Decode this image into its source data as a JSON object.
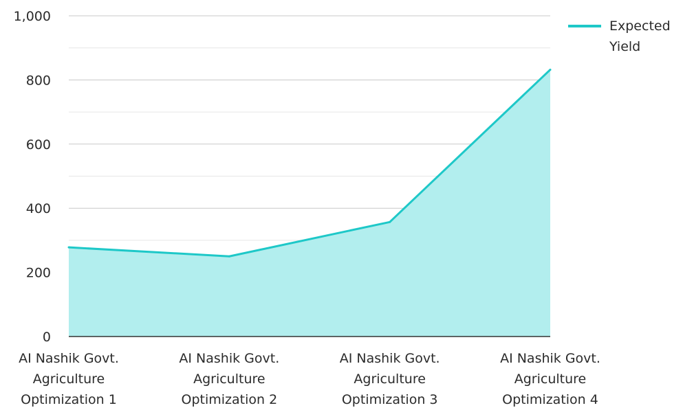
{
  "chart_data": {
    "type": "area",
    "categories": [
      [
        "AI Nashik Govt.",
        "Agriculture",
        "Optimization 1"
      ],
      [
        "AI Nashik Govt.",
        "Agriculture",
        "Optimization 2"
      ],
      [
        "AI Nashik Govt.",
        "Agriculture",
        "Optimization 3"
      ],
      [
        "AI Nashik Govt.",
        "Agriculture",
        "Optimization 4"
      ]
    ],
    "series": [
      {
        "name": [
          "Expected",
          "Yield"
        ],
        "values": [
          278,
          250,
          357,
          832
        ]
      }
    ],
    "ylim": [
      0,
      1000
    ],
    "yticks": [
      0,
      200,
      400,
      600,
      800,
      1000
    ],
    "ytick_labels": [
      "0",
      "200",
      "400",
      "600",
      "800",
      "1,000"
    ],
    "grid": true,
    "legend_position": "top-right",
    "colors": {
      "line": "#1ec8c8",
      "fill": "#b2eeee",
      "grid": "#c8c8c8",
      "axis": "#333333"
    }
  }
}
